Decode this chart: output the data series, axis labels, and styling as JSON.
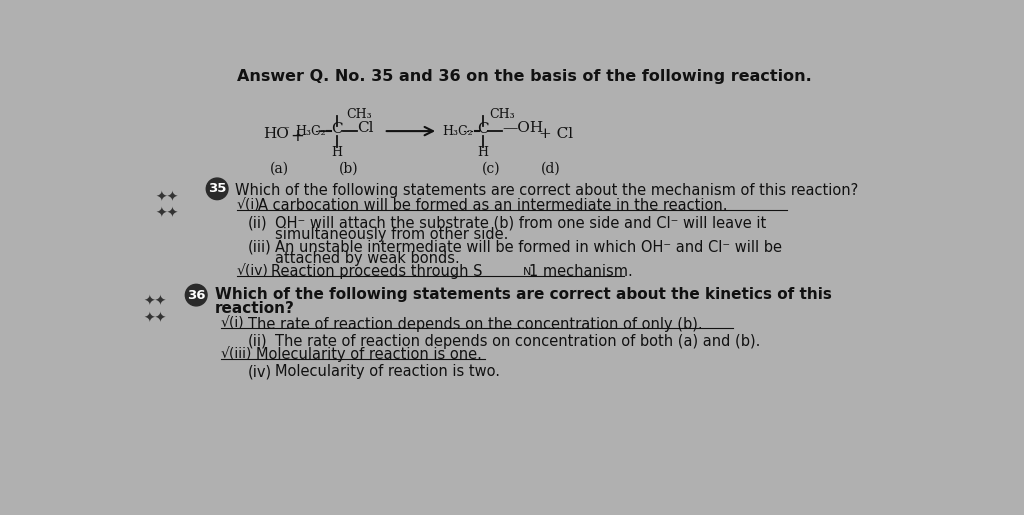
{
  "background_color": "#b0b0b0",
  "title": "Answer Q. No. 35 and 36 on the basis of the following reaction.",
  "text_color": "#111111",
  "font_family": "DejaVu Serif",
  "q35_text": "Which of the following statements are correct about the mechanism of this reaction?",
  "q35_i": "A carbocation will be formed as an intermediate in the reaction.",
  "q35_ii_line1": "OH⁻ will attach the substrate (b) from one side and Cl⁻ will leave it",
  "q35_ii_line2": "simultaneously from other side.",
  "q35_iii_line1": "An unstable intermediate will be formed in which OH⁻ and Cl⁻ will be",
  "q35_iii_line2": "attached by weak bonds.",
  "q35_iv": "Reaction proceeds through Sₙ¹ mechanism.",
  "q35_iv_sn": "N",
  "q36_text": "Which of the following statements are correct about the kinetics of this",
  "q36_text2": "reaction?",
  "q36_i": "The rate of reaction depends on the concentration of only (b).",
  "q36_ii": "The rate of reaction depends on concentration of both (a) and (b).",
  "q36_iii": "Molecularity of reaction is one.",
  "q36_iv": "Molecularity of reaction is two."
}
